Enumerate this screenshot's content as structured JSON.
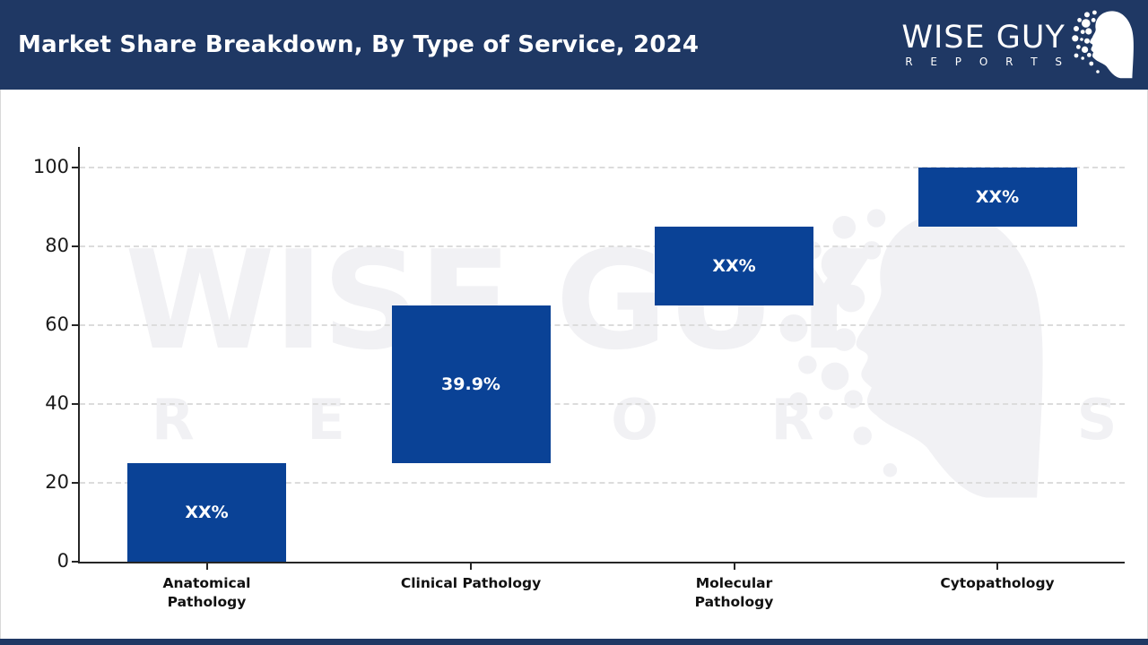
{
  "header": {
    "title": "Market Share Breakdown, By Type of Service, 2024",
    "logo": {
      "brand_line1": "WISE GUY",
      "brand_line2": "R E P O R T S",
      "icon": "dotted-face-profile-icon"
    }
  },
  "watermark": {
    "line1": "WISE GUY",
    "line2": "R E P O R T S",
    "icon": "dotted-face-profile-icon"
  },
  "colors": {
    "header_bg": "#1f3864",
    "bar_fill": "#0a4296",
    "bar_label": "#ffffff",
    "axis": "#262626",
    "tick_label": "#1a1a1a",
    "gridline": "#dcdcdc",
    "watermark": "#f1f1f4",
    "background": "#ffffff"
  },
  "chart_data": {
    "type": "bar",
    "variant": "floating-waterfall",
    "title": "Market Share Breakdown, By Type of Service, 2024",
    "categories": [
      "Anatomical\nPathology",
      "Clinical Pathology",
      "Molecular\nPathology",
      "Cytopathology"
    ],
    "series": [
      {
        "name": "Market share (%)",
        "segments": [
          {
            "category": "Anatomical Pathology",
            "start": 0,
            "end": 25,
            "label": "XX%"
          },
          {
            "category": "Clinical Pathology",
            "start": 25,
            "end": 65,
            "label": "39.9%"
          },
          {
            "category": "Molecular Pathology",
            "start": 65,
            "end": 85,
            "label": "XX%"
          },
          {
            "category": "Cytopathology",
            "start": 85,
            "end": 100,
            "label": "XX%"
          }
        ]
      }
    ],
    "xlabel": "",
    "ylabel": "",
    "ylim": [
      0,
      100
    ],
    "yticks": [
      0,
      20,
      40,
      60,
      80,
      100
    ],
    "grid": {
      "horizontal": true,
      "style": "dashed"
    },
    "legend": "none"
  }
}
